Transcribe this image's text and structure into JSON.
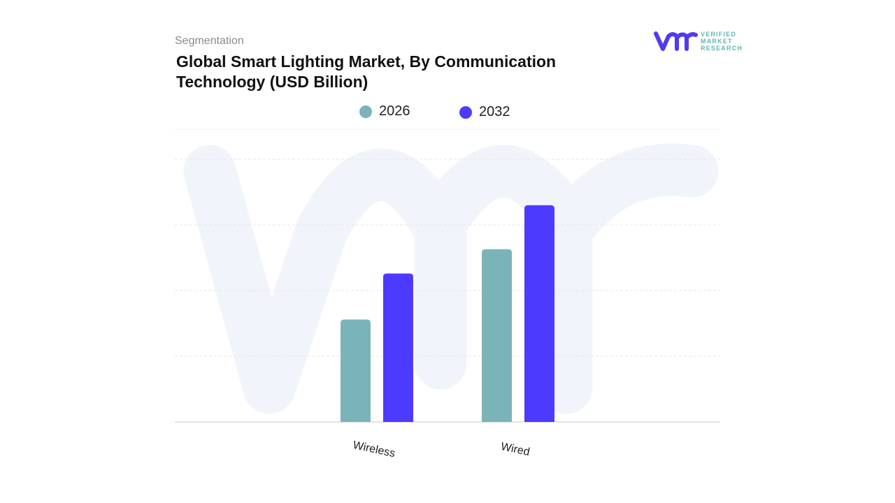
{
  "header": {
    "eyebrow": "Segmentation",
    "title": "Global Smart Lighting Market, By Communication Technology (USD Billion)"
  },
  "logo": {
    "mark": "vmr",
    "text_lines": [
      "VERIFIED",
      "MARKET",
      "RESEARCH"
    ],
    "colors": {
      "mark": "#4f3bf2",
      "text": "#5fb8b0"
    }
  },
  "chart_data": {
    "type": "bar",
    "title": "Global Smart Lighting Market, By Communication Technology (USD Billion)",
    "categories": [
      "Wireless",
      "Wired"
    ],
    "series": [
      {
        "name": "2026",
        "color": "#7ab4b8",
        "values": [
          1.56,
          2.63
        ]
      },
      {
        "name": "2032",
        "color": "#4c3bff",
        "values": [
          2.26,
          3.3
        ]
      }
    ],
    "xlabel": "",
    "ylabel": "",
    "ylim": [
      0,
      4
    ],
    "y_tick_labels_shown": false,
    "grid": true,
    "legend": "top-center"
  }
}
